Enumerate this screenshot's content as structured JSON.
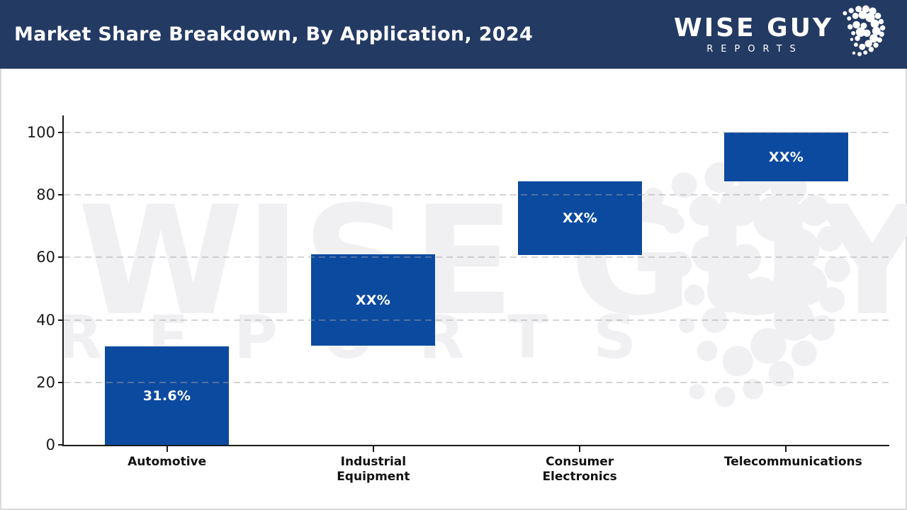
{
  "header": {
    "title": "Market Share Breakdown, By Application, 2024",
    "logo": {
      "line1": "WISE GUY",
      "line2": "REPORTS"
    }
  },
  "watermark": {
    "line1": "WISE GUY.",
    "line2": "REPORTS"
  },
  "colors": {
    "header_bg": "#233A63",
    "bar_fill": "#0C4AA0",
    "bar_label": "#FFFFFF",
    "grid": "#D9D9D9",
    "axis": "#1A1A1A",
    "watermark": "#F0F0F3"
  },
  "chart_data": {
    "type": "bar",
    "subtype": "waterfall",
    "title": "Market Share Breakdown, By Application, 2024",
    "categories": [
      "Automotive",
      "Industrial Equipment",
      "Consumer Electronics",
      "Telecommunications"
    ],
    "bars": [
      {
        "category": "Automotive",
        "start": 0,
        "end": 31.6,
        "value": 31.6,
        "label": "31.6%"
      },
      {
        "category": "Industrial Equipment",
        "start": 31.6,
        "end": 60.9,
        "value": 29.3,
        "label": "XX%"
      },
      {
        "category": "Consumer Electronics",
        "start": 60.9,
        "end": 84.4,
        "value": 23.5,
        "label": "XX%"
      },
      {
        "category": "Telecommunications",
        "start": 84.4,
        "end": 100,
        "value": 15.6,
        "label": "XX%"
      }
    ],
    "ylim": [
      0,
      100
    ],
    "yticks": [
      0,
      20,
      40,
      60,
      80,
      100
    ],
    "xlabel": "",
    "ylabel": "",
    "grid": "horizontal-dashed",
    "legend": null
  }
}
